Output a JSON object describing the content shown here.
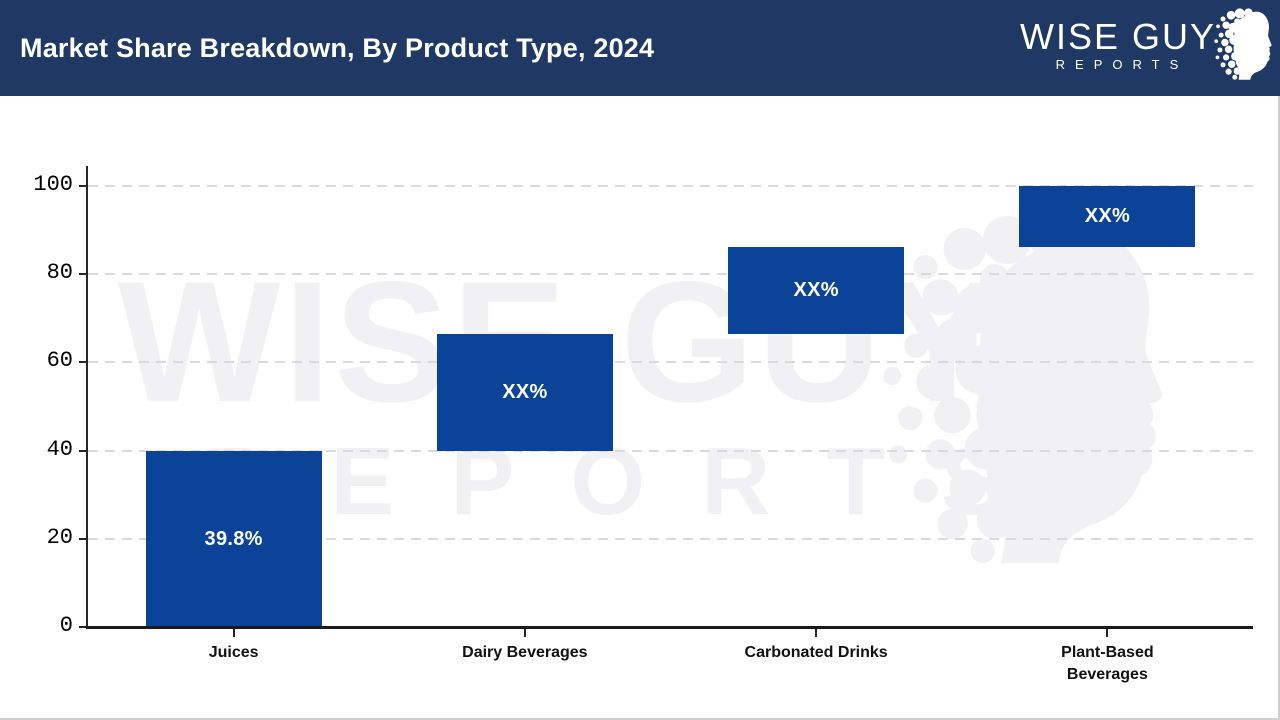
{
  "header": {
    "title": "Market Share Breakdown, By Product Type, 2024",
    "brand": {
      "line1": "WISE GUY",
      "line2": "REPORTS"
    }
  },
  "watermark": {
    "line1": "WISE GUY",
    "line2": "REPORTS"
  },
  "chart_data": {
    "type": "bar",
    "subtype": "waterfall",
    "title": "Market Share Breakdown, By Product Type, 2024",
    "categories": [
      "Juices",
      "Dairy Beverages",
      "Carbonated Drinks",
      "Plant-Based Beverages"
    ],
    "segments": [
      {
        "category": "Juices",
        "start": 0,
        "end": 39.8,
        "label": "39.8%"
      },
      {
        "category": "Dairy Beverages",
        "start": 39.8,
        "end": 66.5,
        "label": "XX%"
      },
      {
        "category": "Carbonated Drinks",
        "start": 66.5,
        "end": 86.2,
        "label": "XX%"
      },
      {
        "category": "Plant-Based Beverages",
        "start": 86.2,
        "end": 100,
        "label": "XX%"
      }
    ],
    "xlabel": "",
    "ylabel": "",
    "ylim": [
      0,
      100
    ],
    "yticks": [
      0,
      20,
      40,
      60,
      80,
      100
    ],
    "grid": "horizontal-dashed",
    "legend": "none",
    "bar_color": "#0b4398",
    "bar_label_color": "#ffffff",
    "grid_color": "#dadada",
    "axis_color": "#262626",
    "header_bg_color": "#1f3864",
    "watermark_color": "#f1f1f4"
  }
}
